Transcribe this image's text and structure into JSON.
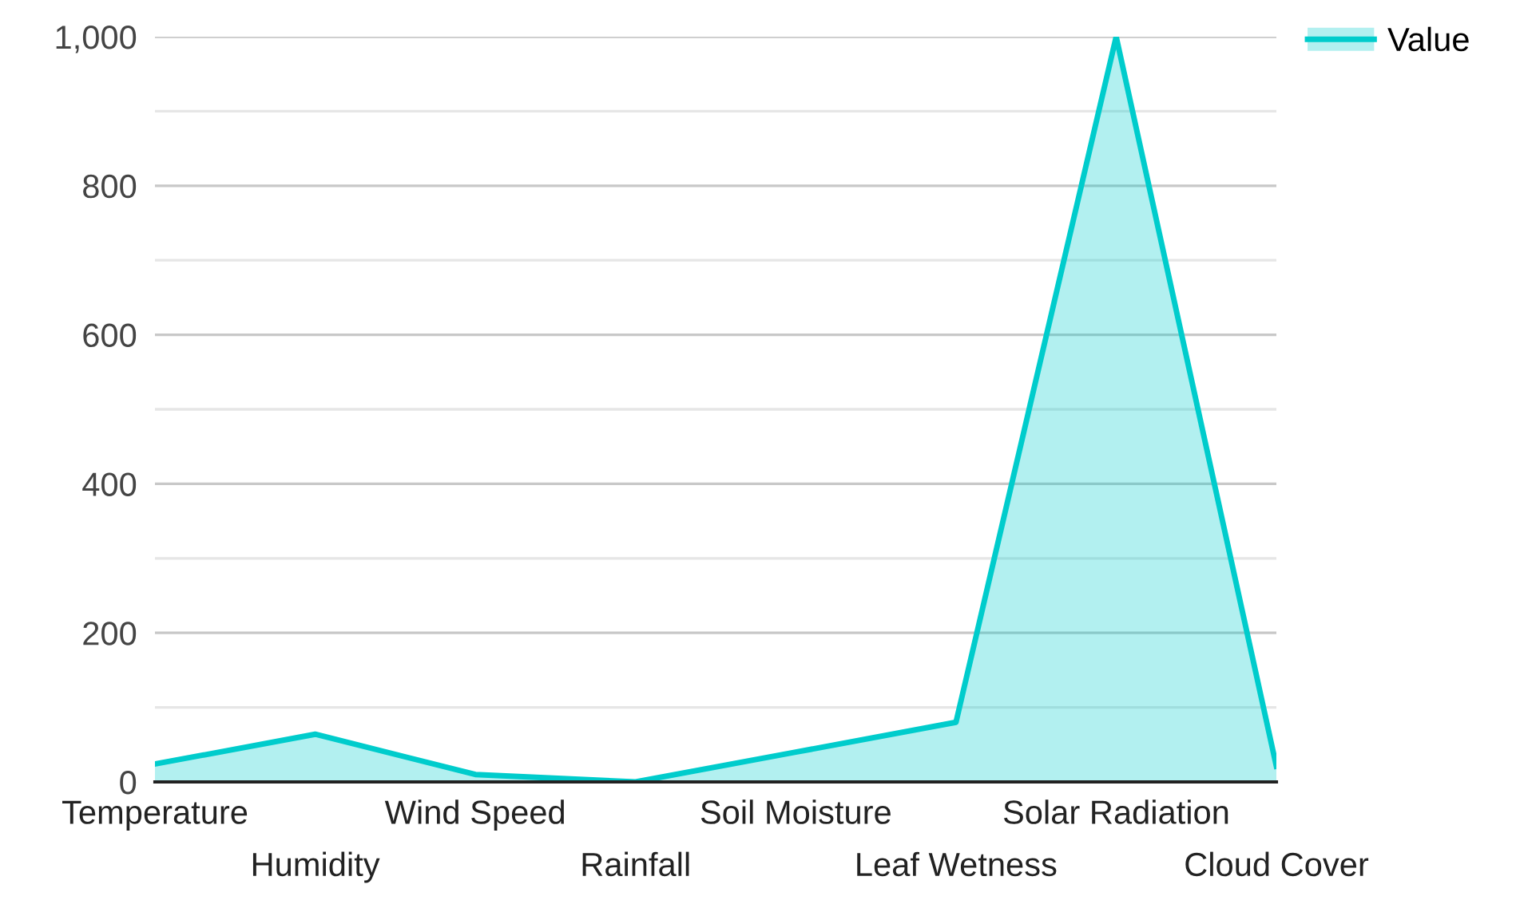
{
  "chart_data": {
    "type": "area",
    "categories": [
      "Temperature",
      "Humidity",
      "Wind Speed",
      "Rainfall",
      "Soil Moisture",
      "Leaf Wetness",
      "Solar Radiation",
      "Cloud Cover"
    ],
    "series": [
      {
        "name": "Value",
        "color": "#00cccc",
        "values": [
          24,
          64,
          10,
          0,
          40,
          80,
          1000,
          21
        ]
      }
    ],
    "ylim": [
      0,
      1000
    ],
    "yticks": [
      0,
      {
        "value": 100,
        "label": null
      },
      200,
      {
        "value": 300,
        "label": null
      },
      400,
      {
        "value": 500,
        "label": null
      },
      600,
      {
        "value": 700,
        "label": null
      },
      800,
      {
        "value": 900,
        "label": null
      },
      {
        "value": 1000,
        "label": "1,000"
      }
    ],
    "grid": "y",
    "legend": "top right"
  }
}
